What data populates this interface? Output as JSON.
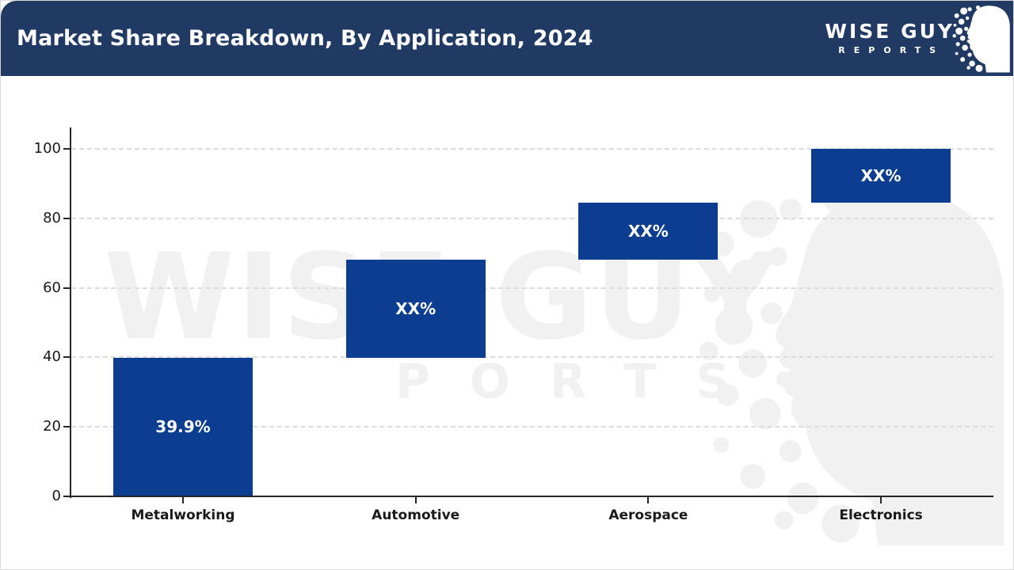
{
  "header": {
    "title": "Market Share Breakdown, By Application, 2024",
    "logo": {
      "line1": "WISE GUY",
      "line2": "REPORTS"
    }
  },
  "watermark": {
    "line1": "WISE GUY",
    "line2": "PORTS"
  },
  "colors": {
    "header_bg": "#213a64",
    "bar": "#0b3d91",
    "bar_label": "#ffffff",
    "gridline": "#dcdcdc",
    "axis": "#262626",
    "watermark": "#f1f1f1"
  },
  "chart_data": {
    "type": "bar",
    "subtype": "waterfall",
    "title": "Market Share Breakdown, By Application, 2024",
    "categories": [
      "Metalworking",
      "Automotive",
      "Aerospace",
      "Electronics"
    ],
    "bars": [
      {
        "category": "Metalworking",
        "start": 0,
        "end": 39.9,
        "label": "39.9%"
      },
      {
        "category": "Automotive",
        "start": 39.9,
        "end": 68.2,
        "label": "XX%"
      },
      {
        "category": "Aerospace",
        "start": 68.2,
        "end": 84.6,
        "label": "XX%"
      },
      {
        "category": "Electronics",
        "start": 84.6,
        "end": 100,
        "label": "XX%"
      }
    ],
    "xlabel": "",
    "ylabel": "",
    "y_ticks": [
      0,
      20,
      40,
      60,
      80,
      100
    ],
    "ylim": [
      0,
      106
    ],
    "grid": {
      "horizontal": true,
      "style": "dashed"
    },
    "legend": "none",
    "value_labels_inside_bars": true
  }
}
